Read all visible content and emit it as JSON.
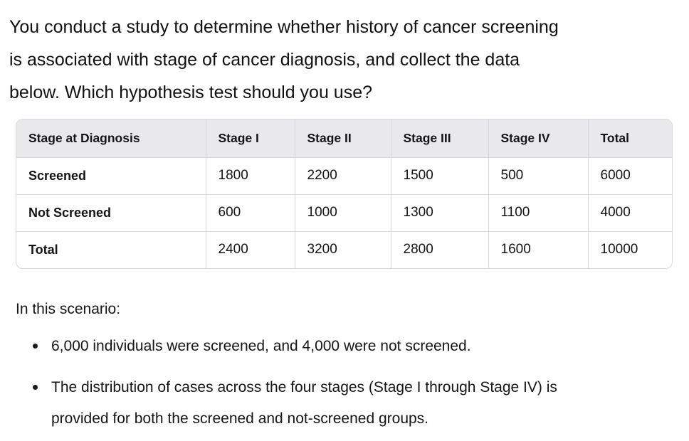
{
  "question": {
    "text": "You conduct a study to determine whether history of cancer screening\nis associated with stage of cancer diagnosis, and collect the data\nbelow. Which hypothesis test should you use?"
  },
  "table": {
    "columns": [
      "Stage at Diagnosis",
      "Stage I",
      "Stage II",
      "Stage III",
      "Stage IV",
      "Total"
    ],
    "rows": [
      {
        "label": "Screened",
        "cells": [
          "1800",
          "2200",
          "1500",
          "500",
          "6000"
        ]
      },
      {
        "label": "Not Screened",
        "cells": [
          "600",
          "1000",
          "1300",
          "1100",
          "4000"
        ]
      },
      {
        "label": "Total",
        "cells": [
          "2400",
          "3200",
          "2800",
          "1600",
          "10000"
        ]
      }
    ]
  },
  "scenario": {
    "intro": "In this scenario:",
    "bullets": [
      "6,000 individuals were screened, and 4,000 were not screened.",
      "The distribution of cases across the four stages (Stage I through Stage IV) is\nprovided for both the screened and not-screened groups."
    ]
  },
  "colors": {
    "header_bg": "#e9e9eb",
    "border": "#d8d8dc",
    "text": "#151515"
  }
}
